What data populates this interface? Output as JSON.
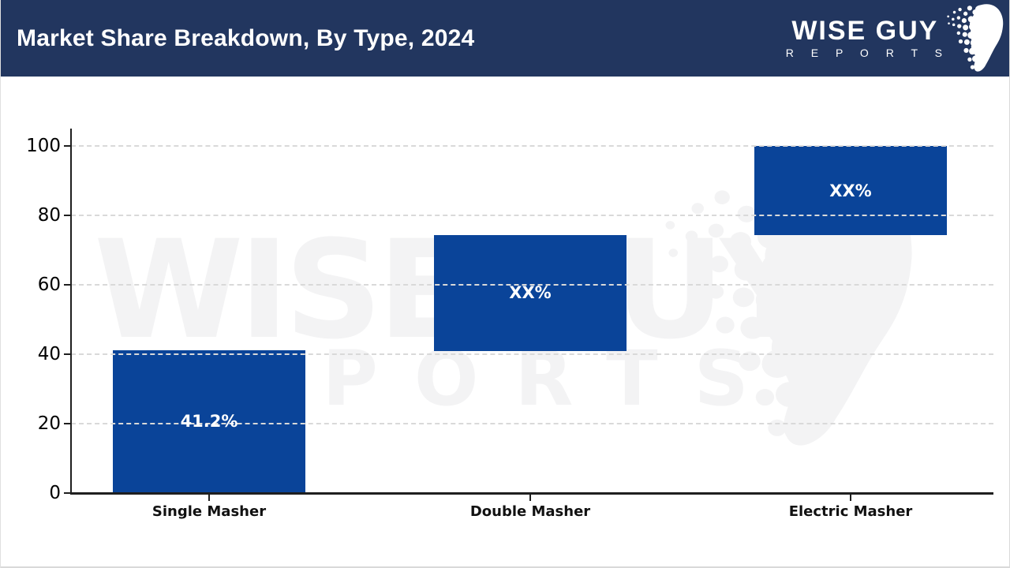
{
  "header": {
    "title": "Market Share Breakdown, By Type, 2024",
    "logo": {
      "line1": "WISE GUY",
      "line2": "R E P O R T S",
      "face_icon": "dotted-face-profile"
    }
  },
  "watermark": {
    "line1": "WISE GUY",
    "line2": "REPORTS",
    "face_icon": "dotted-face-profile"
  },
  "chart_data": {
    "type": "bar",
    "subtype": "waterfall-stacked-range",
    "title": "Market Share Breakdown, By Type, 2024",
    "categories": [
      "Single Masher",
      "Double Masher",
      "Electric Masher"
    ],
    "series": [
      {
        "name": "Single Masher",
        "start": 0,
        "end": 41.2,
        "value_label": "41.2%"
      },
      {
        "name": "Double Masher",
        "start": 41.0,
        "end": 74.3,
        "value_label": "XX%"
      },
      {
        "name": "Electric Masher",
        "start": 74.3,
        "end": 100,
        "value_label": "XX%"
      }
    ],
    "xlabel": "",
    "ylabel": "",
    "y_ticks": [
      0,
      20,
      40,
      60,
      80,
      100
    ],
    "ylim": [
      0,
      105
    ],
    "grid": "horizontal-dashed, drawn above bars",
    "legend": "none",
    "colors": {
      "bar": "#0a4499",
      "header_background": "#22365f",
      "gridline": "#d9d9d9",
      "axis": "#1f1f1f",
      "value_label_text": "#ffffff",
      "watermark": "#f3f3f4"
    }
  }
}
